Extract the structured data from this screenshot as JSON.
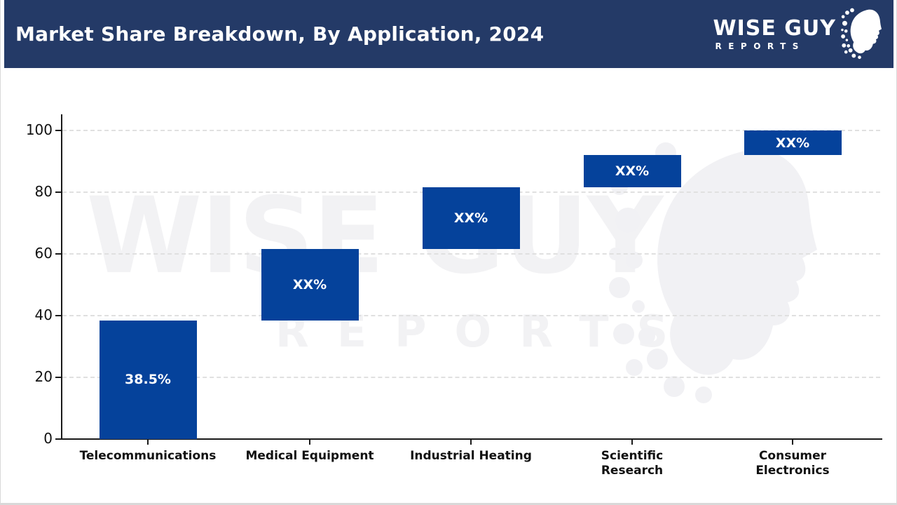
{
  "header": {
    "title": "Market Share Breakdown, By Application, 2024",
    "logo": {
      "line1": "WISE GUY",
      "line2": "REPORTS"
    }
  },
  "watermark": {
    "line1": "WISE GUY",
    "line2": "REPORTS"
  },
  "chart_data": {
    "type": "bar",
    "subtype": "waterfall",
    "title": "Market Share Breakdown, By Application, 2024",
    "categories": [
      "Telecommunications",
      "Medical Equipment",
      "Industrial Heating",
      "Scientific\nResearch",
      "Consumer\nElectronics"
    ],
    "segments": [
      {
        "category": "Telecommunications",
        "start": 0,
        "end": 38.5,
        "label": "38.5%"
      },
      {
        "category": "Medical Equipment",
        "start": 38.5,
        "end": 61.5,
        "label": "XX%"
      },
      {
        "category": "Industrial Heating",
        "start": 61.5,
        "end": 81.5,
        "label": "XX%"
      },
      {
        "category": "Scientific Research",
        "start": 81.5,
        "end": 92,
        "label": "XX%"
      },
      {
        "category": "Consumer Electronics",
        "start": 92,
        "end": 100,
        "label": "XX%"
      }
    ],
    "yticks": [
      0,
      20,
      40,
      60,
      80,
      100
    ],
    "ylim": [
      0,
      105
    ],
    "grid": "dashed-horizontal",
    "legend": "none",
    "colors": {
      "bar": "#05429B",
      "bar_label": "#ffffff",
      "header_bg": "#243A67",
      "axis": "#1a1a1a",
      "gridline": "#e0e0e0",
      "watermark": "#f2f2f4"
    }
  }
}
